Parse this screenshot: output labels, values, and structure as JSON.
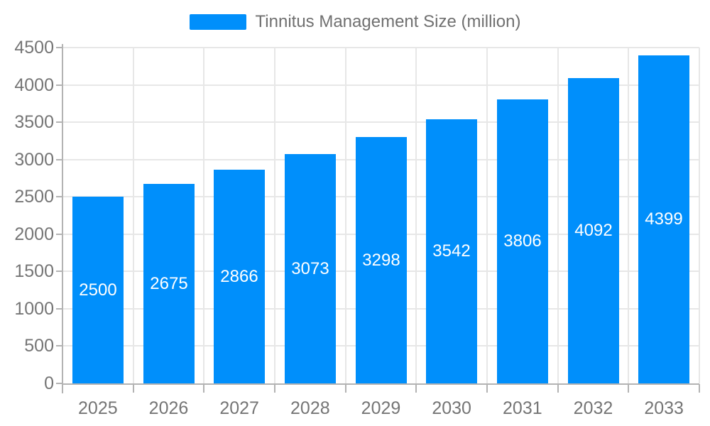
{
  "chart_data": {
    "type": "bar",
    "title": "Tinnitus Management Size (million)",
    "series": [
      {
        "name": "Tinnitus Management Size (million)",
        "values": [
          2500,
          2675,
          2866,
          3073,
          3298,
          3542,
          3806,
          4092,
          4399
        ]
      }
    ],
    "categories": [
      "2025",
      "2026",
      "2027",
      "2028",
      "2029",
      "2030",
      "2031",
      "2032",
      "2033"
    ],
    "xlabel": "",
    "ylabel": "",
    "ylim": [
      0,
      4500
    ],
    "ytick_step": 500,
    "ytick_labels": [
      "0",
      "500",
      "1000",
      "1500",
      "2000",
      "2500",
      "3000",
      "3500",
      "4000",
      "4500"
    ],
    "grid": true,
    "legend_position": "top",
    "bar_color": "#008FFB",
    "bar_label_color": "#ffffff",
    "axis_label_color": "#757575",
    "grid_color": "#e7e7e7",
    "axis_line_color": "#b3b3b3"
  }
}
